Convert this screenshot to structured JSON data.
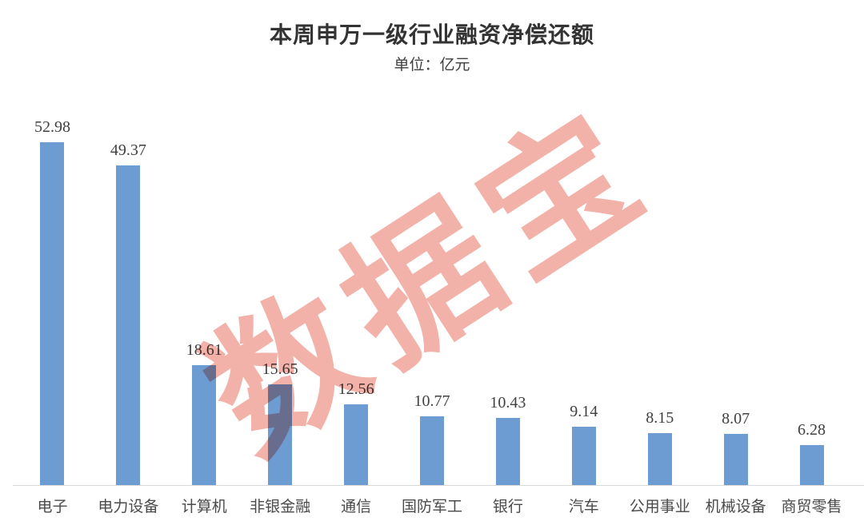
{
  "header": {
    "title": "本周申万一级行业融资净偿还额",
    "subtitle": "单位：亿元"
  },
  "watermark": {
    "text": "数据宝",
    "color": "#f2b2aa"
  },
  "chart_data": {
    "type": "bar",
    "title": "本周申万一级行业融资净偿还额",
    "subtitle": "单位：亿元",
    "categories": [
      "电子",
      "电力设备",
      "计算机",
      "非银金融",
      "通信",
      "国防军工",
      "银行",
      "汽车",
      "公用事业",
      "机械设备",
      "商贸零售"
    ],
    "values": [
      52.98,
      49.37,
      18.61,
      15.65,
      12.56,
      10.77,
      10.43,
      9.14,
      8.15,
      8.07,
      6.28
    ],
    "value_labels": [
      "52.98",
      "49.37",
      "18.61",
      "15.65",
      "12.56",
      "10.77",
      "10.43",
      "9.14",
      "8.15",
      "8.07",
      "6.28"
    ],
    "xlabel": "",
    "ylabel": "",
    "ylim": [
      0,
      55
    ],
    "grid": false,
    "legend": "none",
    "bar_color": "#6d9cd3",
    "axis_line_color": "#d9d9d9",
    "value_label_color": "#404040",
    "category_label_color": "#4a4a4a"
  }
}
